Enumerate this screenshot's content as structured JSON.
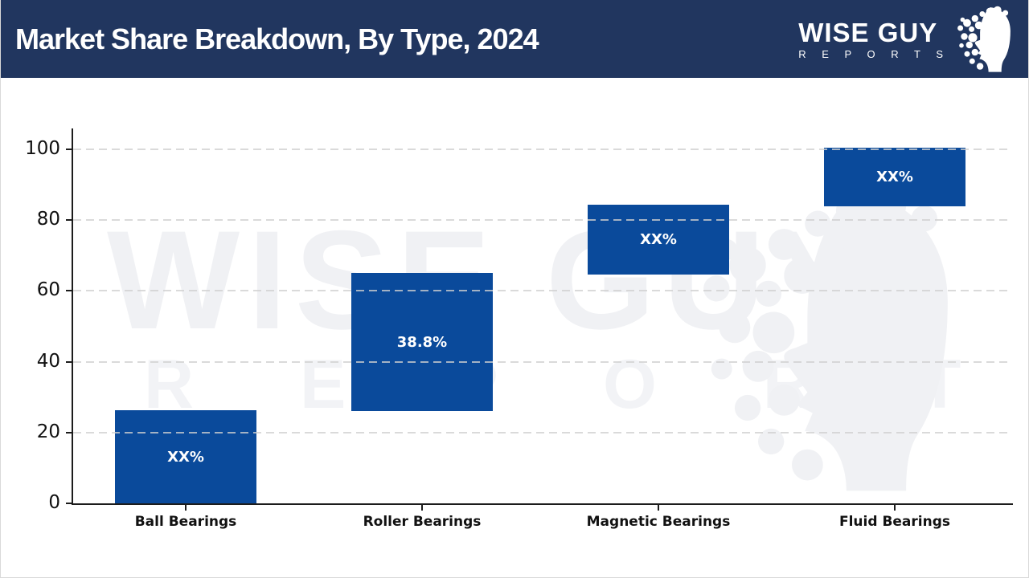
{
  "header": {
    "title": "Market Share Breakdown, By Type, 2024",
    "bg_color": "#21365f",
    "logo": {
      "line1": "WISE GUY",
      "line2": "R E P O R T S"
    }
  },
  "watermark": {
    "line1": "WISE GUY",
    "line2": "R E P O R T S"
  },
  "chart_data": {
    "type": "bar",
    "subtype": "floating-waterfall",
    "title": "Market Share Breakdown, By Type, 2024",
    "categories": [
      "Ball Bearings",
      "Roller Bearings",
      "Magnetic Bearings",
      "Fluid Bearings"
    ],
    "segments": [
      {
        "category": "Ball Bearings",
        "start": 0,
        "end": 26.3,
        "label": "XX%"
      },
      {
        "category": "Roller Bearings",
        "start": 26.1,
        "end": 65.0,
        "label": "38.8%"
      },
      {
        "category": "Magnetic Bearings",
        "start": 64.6,
        "end": 84.4,
        "label": "XX%"
      },
      {
        "category": "Fluid Bearings",
        "start": 83.9,
        "end": 100.5,
        "label": "XX%"
      }
    ],
    "xlabel": "",
    "ylabel": "",
    "ylim": [
      0,
      105.8
    ],
    "yticks": [
      0,
      20,
      40,
      60,
      80,
      100
    ],
    "grid": "horizontal-dashed",
    "legend": "none",
    "bar_color": "#0a4a9b",
    "bar_label_color": "#ffffff",
    "axis_color": "#1c1c1c",
    "grid_color": "#d0d0d0"
  }
}
